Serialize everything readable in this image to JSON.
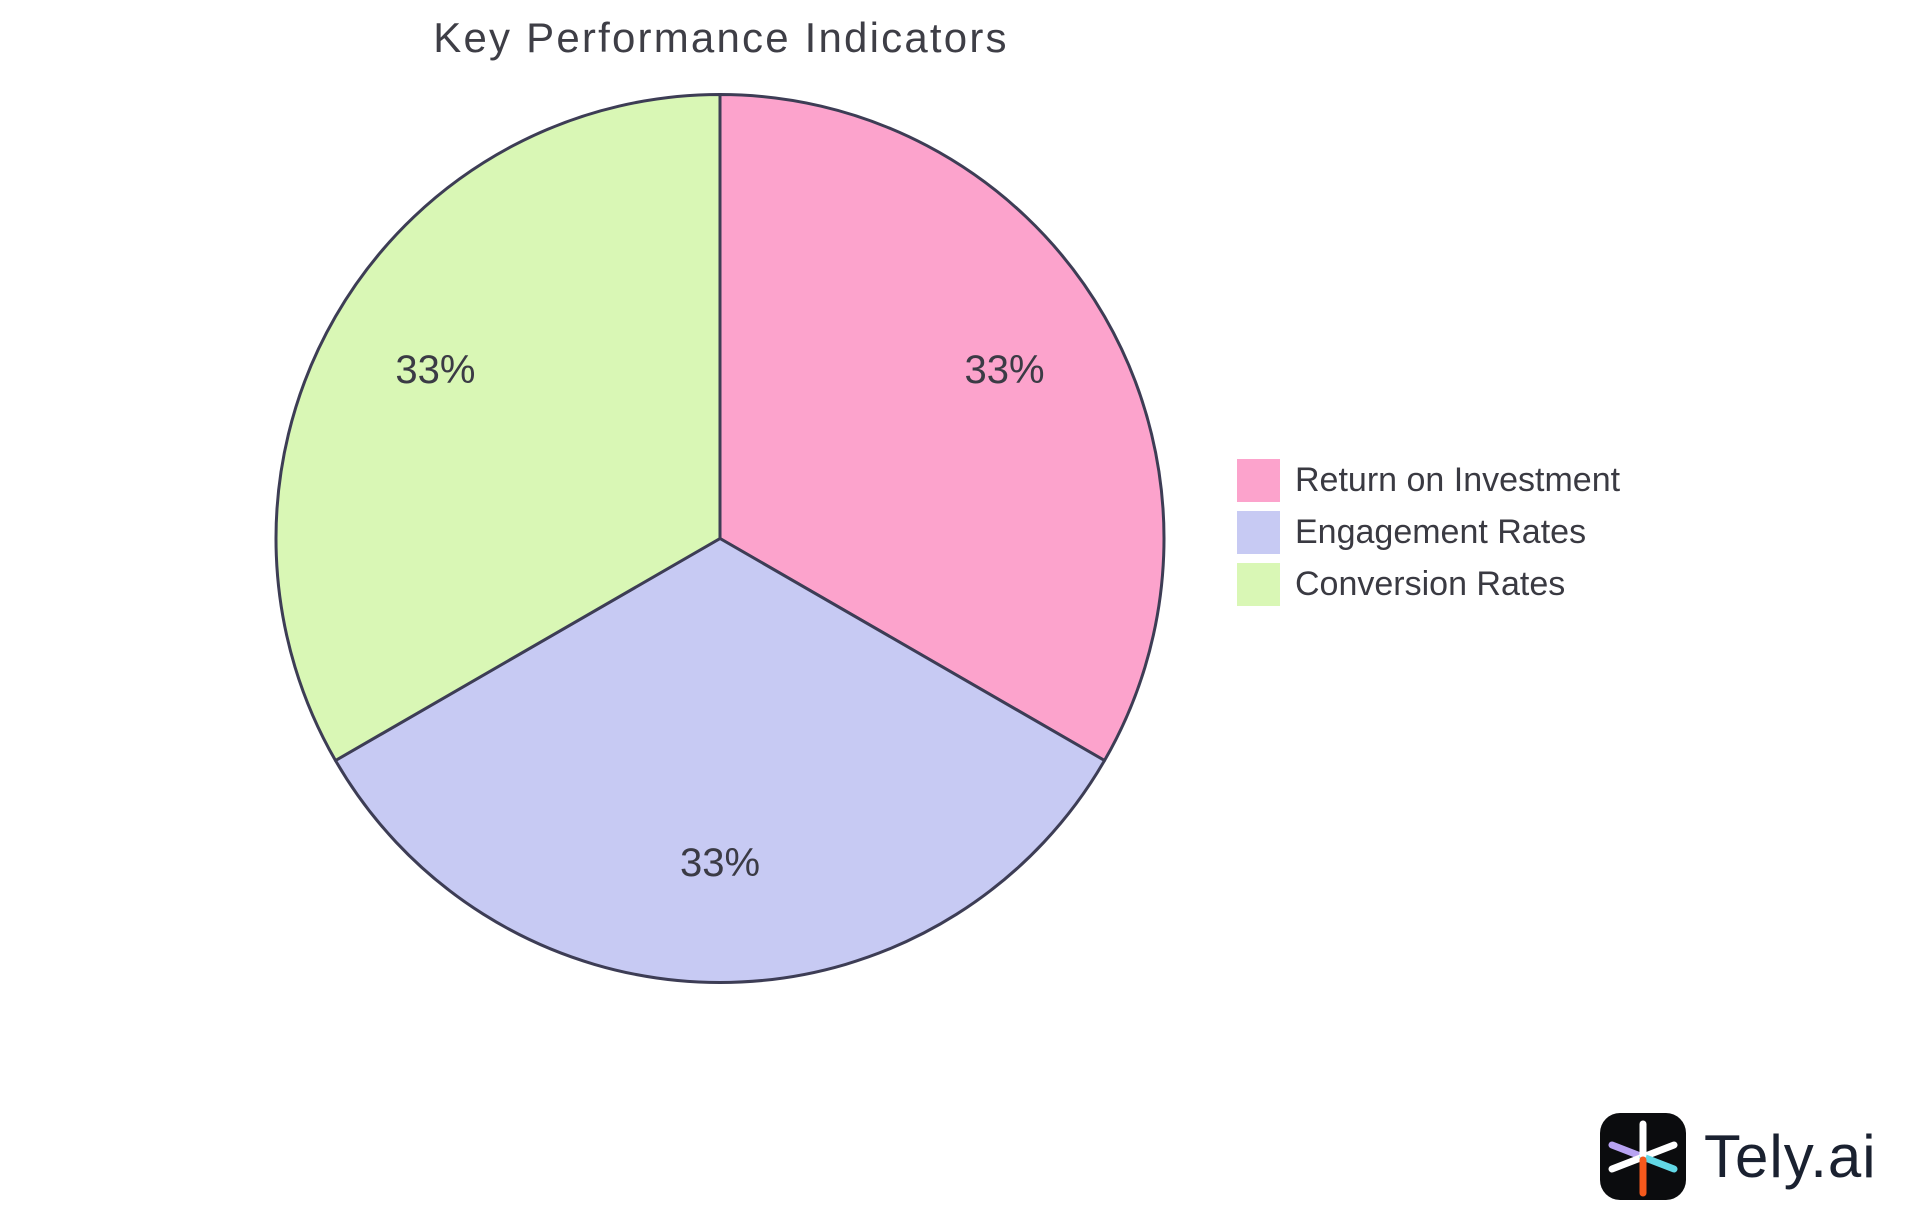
{
  "chart_data": {
    "type": "pie",
    "title": "Key Performance Indicators",
    "labels": [
      "Return on Investment",
      "Engagement Rates",
      "Conversion Rates"
    ],
    "values": [
      33,
      33,
      33
    ],
    "slice_text_labels": [
      "33%",
      "33%",
      "33%"
    ],
    "colors": [
      "#FCA3CC",
      "#C7CAF3",
      "#D9F7B5"
    ],
    "slice_border_color": "#3D3D55",
    "slice_border_width": 3,
    "slice_label_color": "#3B3B45",
    "start_angle": "top",
    "direction": "clockwise",
    "legend_position": "right",
    "grid": "off"
  },
  "branding": {
    "logo_text": "Tely.ai",
    "logo_icon": "asterisk-burst-icon",
    "logo_bg_color": "#0B0C0E",
    "logo_text_color": "#1A2130",
    "icon_ray_colors": {
      "up": "#FFFFFF",
      "down": "#F5591C",
      "upper_left": "#B8A3F2",
      "lower_left": "#FFFFFF",
      "upper_right": "#FFFFFF",
      "lower_right": "#62D8E6"
    }
  }
}
